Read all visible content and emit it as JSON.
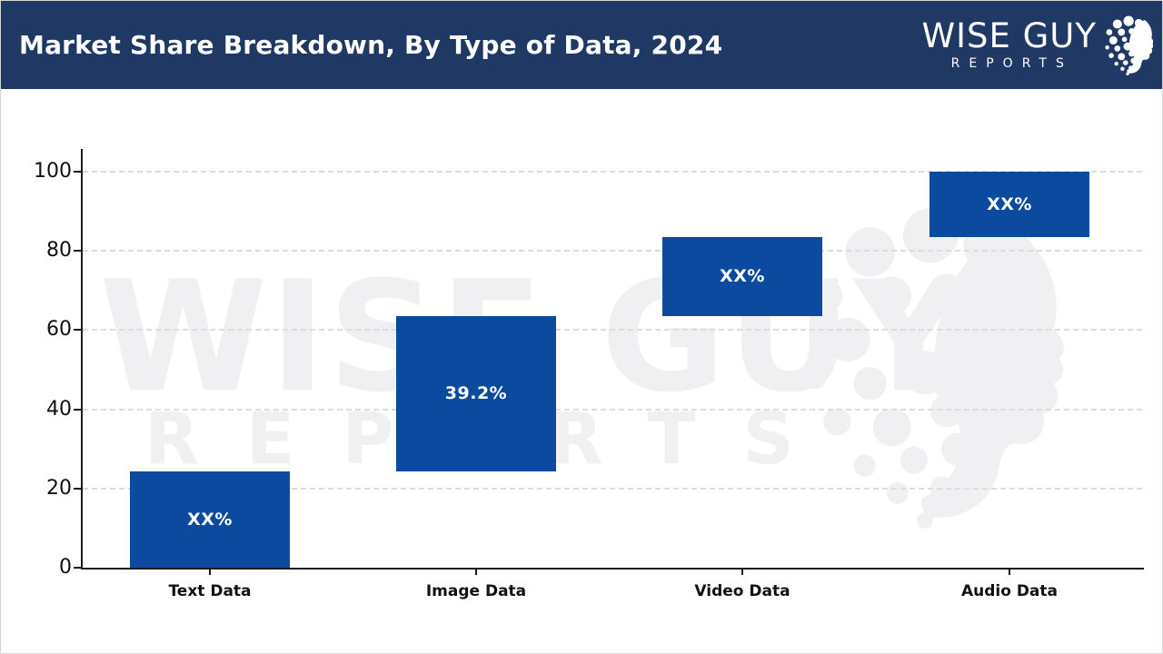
{
  "header": {
    "title": "Market Share Breakdown, By Type of Data, 2024"
  },
  "logo": {
    "line1": "WISE GUY",
    "line2": "REPORTS"
  },
  "watermark": {
    "line1": "WISE GUY",
    "line2": "REPORTS"
  },
  "chart_data": {
    "type": "bar",
    "subtype": "floating-segment-waterfall",
    "title": "Market Share Breakdown, By Type of Data, 2024",
    "categories": [
      "Text Data",
      "Image Data",
      "Video Data",
      "Audio Data"
    ],
    "series": [
      {
        "name": "Market Share (%)",
        "segments": [
          {
            "category": "Text Data",
            "start": 0,
            "end": 24.4,
            "label": "XX%"
          },
          {
            "category": "Image Data",
            "start": 24.4,
            "end": 63.6,
            "label": "39.2%",
            "value": 39.2
          },
          {
            "category": "Video Data",
            "start": 63.6,
            "end": 83.6,
            "label": "XX%"
          },
          {
            "category": "Audio Data",
            "start": 83.6,
            "end": 100,
            "label": "XX%"
          }
        ]
      }
    ],
    "y_ticks": [
      0,
      20,
      40,
      60,
      80,
      100
    ],
    "ylim": [
      0,
      105.5
    ],
    "xlabel": "",
    "ylabel": "",
    "grid": "horizontal-dashed",
    "legend": "none",
    "colors": {
      "bar": "#0B4A9F",
      "bar_label": "#FFFFFF",
      "grid": "#DCDCDC",
      "axis": "#1A1A1A",
      "header_bg": "#1F3864",
      "header_text": "#FFFFFF",
      "watermark": "#F0F0F2"
    }
  }
}
